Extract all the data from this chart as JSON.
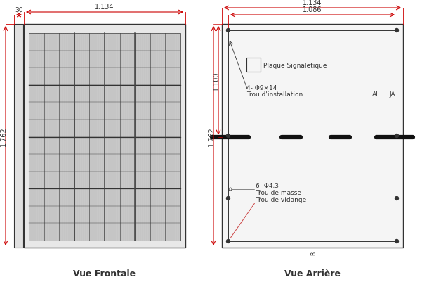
{
  "bg_color": "#ffffff",
  "line_color": "#333333",
  "dim_color": "#cc0000",
  "front_label": "Vue Frontale",
  "back_label": "Vue Arrière",
  "dim_1134_front": "1.134",
  "dim_30": "30",
  "dim_1762_front": "1.762",
  "dim_1134_back": "1.134",
  "dim_1086": "1.086",
  "dim_1762_back": "1.762",
  "dim_1100": "1.100",
  "text_plaque": "Plaque Signaletique",
  "text_trou_inst_1": "4- Φ9×14",
  "text_trou_inst_2": "Trou d'installation",
  "text_AL": "AL",
  "text_JA": "JA",
  "text_trou_masse_1": "6- Φ4,3",
  "text_trou_masse_2": "Trou de masse",
  "text_trou_vidange": "Trou de vidange",
  "text_B": "B",
  "title_fontsize": 9,
  "label_fontsize": 6.5,
  "dim_fontsize": 7
}
